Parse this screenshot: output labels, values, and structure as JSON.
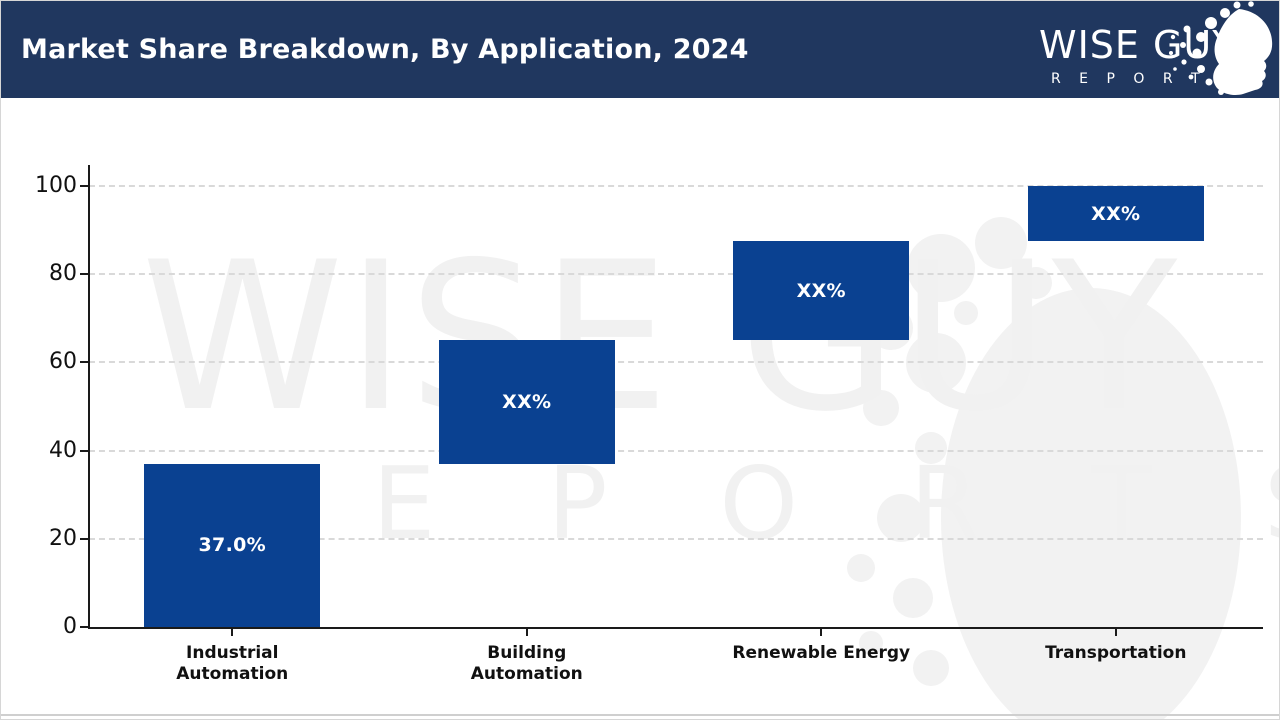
{
  "header": {
    "title": "Market Share Breakdown, By Application, 2024",
    "bg_color": "#20375f",
    "logo": {
      "line1": "WISE GUY",
      "line2": "R E P O R T S"
    }
  },
  "watermark": {
    "line1": "WISE GUY",
    "line2": "R E P O R T S"
  },
  "chart_data": {
    "type": "bar",
    "subtype": "waterfall",
    "title": "Market Share Breakdown, By Application, 2024",
    "categories": [
      "Industrial Automation",
      "Building Automation",
      "Renewable Energy",
      "Transportation"
    ],
    "category_lines": [
      [
        "Industrial",
        "Automation"
      ],
      [
        "Building",
        "Automation"
      ],
      [
        "Renewable Energy"
      ],
      [
        "Transportation"
      ]
    ],
    "segments": [
      {
        "category": "Industrial Automation",
        "start": 0,
        "end": 37,
        "label": "37.0%"
      },
      {
        "category": "Building Automation",
        "start": 37,
        "end": 65,
        "label": "XX%"
      },
      {
        "category": "Renewable Energy",
        "start": 65,
        "end": 87.5,
        "label": "XX%"
      },
      {
        "category": "Transportation",
        "start": 87.5,
        "end": 100,
        "label": "XX%"
      }
    ],
    "bar_labels": [
      "37.0%",
      "XX%",
      "XX%",
      "XX%"
    ],
    "xlabel": "",
    "ylabel": "",
    "ylim": [
      0,
      100
    ],
    "yticks": [
      0,
      20,
      40,
      60,
      80,
      100
    ],
    "grid": "horizontal-dashed",
    "legend": "none",
    "bar_color": "#0a4191",
    "grid_color": "#d9d9d9",
    "axis_color": "#1a1a1a"
  }
}
